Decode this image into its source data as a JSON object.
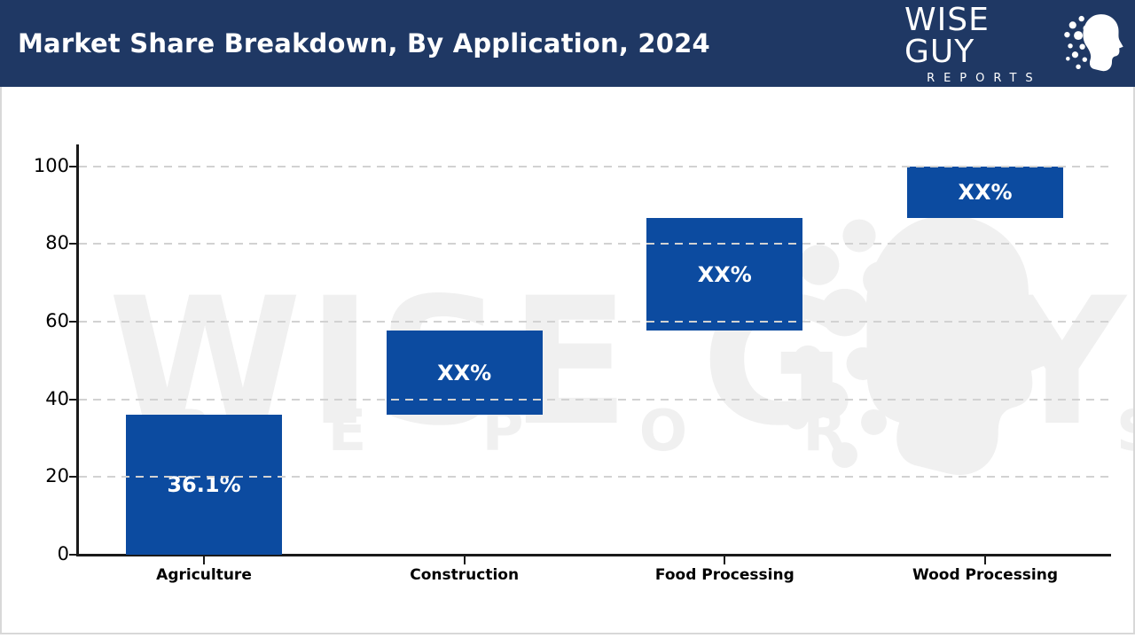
{
  "header": {
    "background": "#1F3864",
    "title": "Market Share Breakdown, By Application, 2024",
    "title_color": "#ffffff",
    "logo": {
      "brand_top": "WISE GUY",
      "brand_bottom": "REPORTS",
      "icon": "dotted-head-profile",
      "color": "#ffffff"
    }
  },
  "watermark": {
    "brand_top": "WISE GUY",
    "brand_bottom": "R E P O R T S",
    "icon": "dotted-head-profile",
    "color": "#f0f0f0"
  },
  "chart_data": {
    "type": "bar",
    "subtype": "waterfall",
    "title": "Market Share Breakdown, By Application, 2024",
    "categories": [
      "Agriculture",
      "Construction",
      "Food Processing",
      "Wood Processing"
    ],
    "segments": [
      {
        "category": "Agriculture",
        "start": 0,
        "end": 36.1,
        "label": "36.1%"
      },
      {
        "category": "Construction",
        "start": 36.1,
        "end": 57.6,
        "label": "XX%"
      },
      {
        "category": "Food Processing",
        "start": 57.6,
        "end": 86.6,
        "label": "XX%"
      },
      {
        "category": "Wood Processing",
        "start": 86.6,
        "end": 100,
        "label": "XX%"
      }
    ],
    "xlabel": "",
    "ylabel": "",
    "yticks": [
      0,
      20,
      40,
      60,
      80,
      100
    ],
    "ylim": [
      0,
      105
    ],
    "grid": true,
    "grid_style": "dashed-horizontal",
    "legend": "none",
    "bar_color": "#0C4BA0",
    "bar_label_color": "#ffffff",
    "axis_color": "#1a1a1a",
    "tick_label_color": "#000000",
    "gridline_color": "#d2d2d2"
  }
}
